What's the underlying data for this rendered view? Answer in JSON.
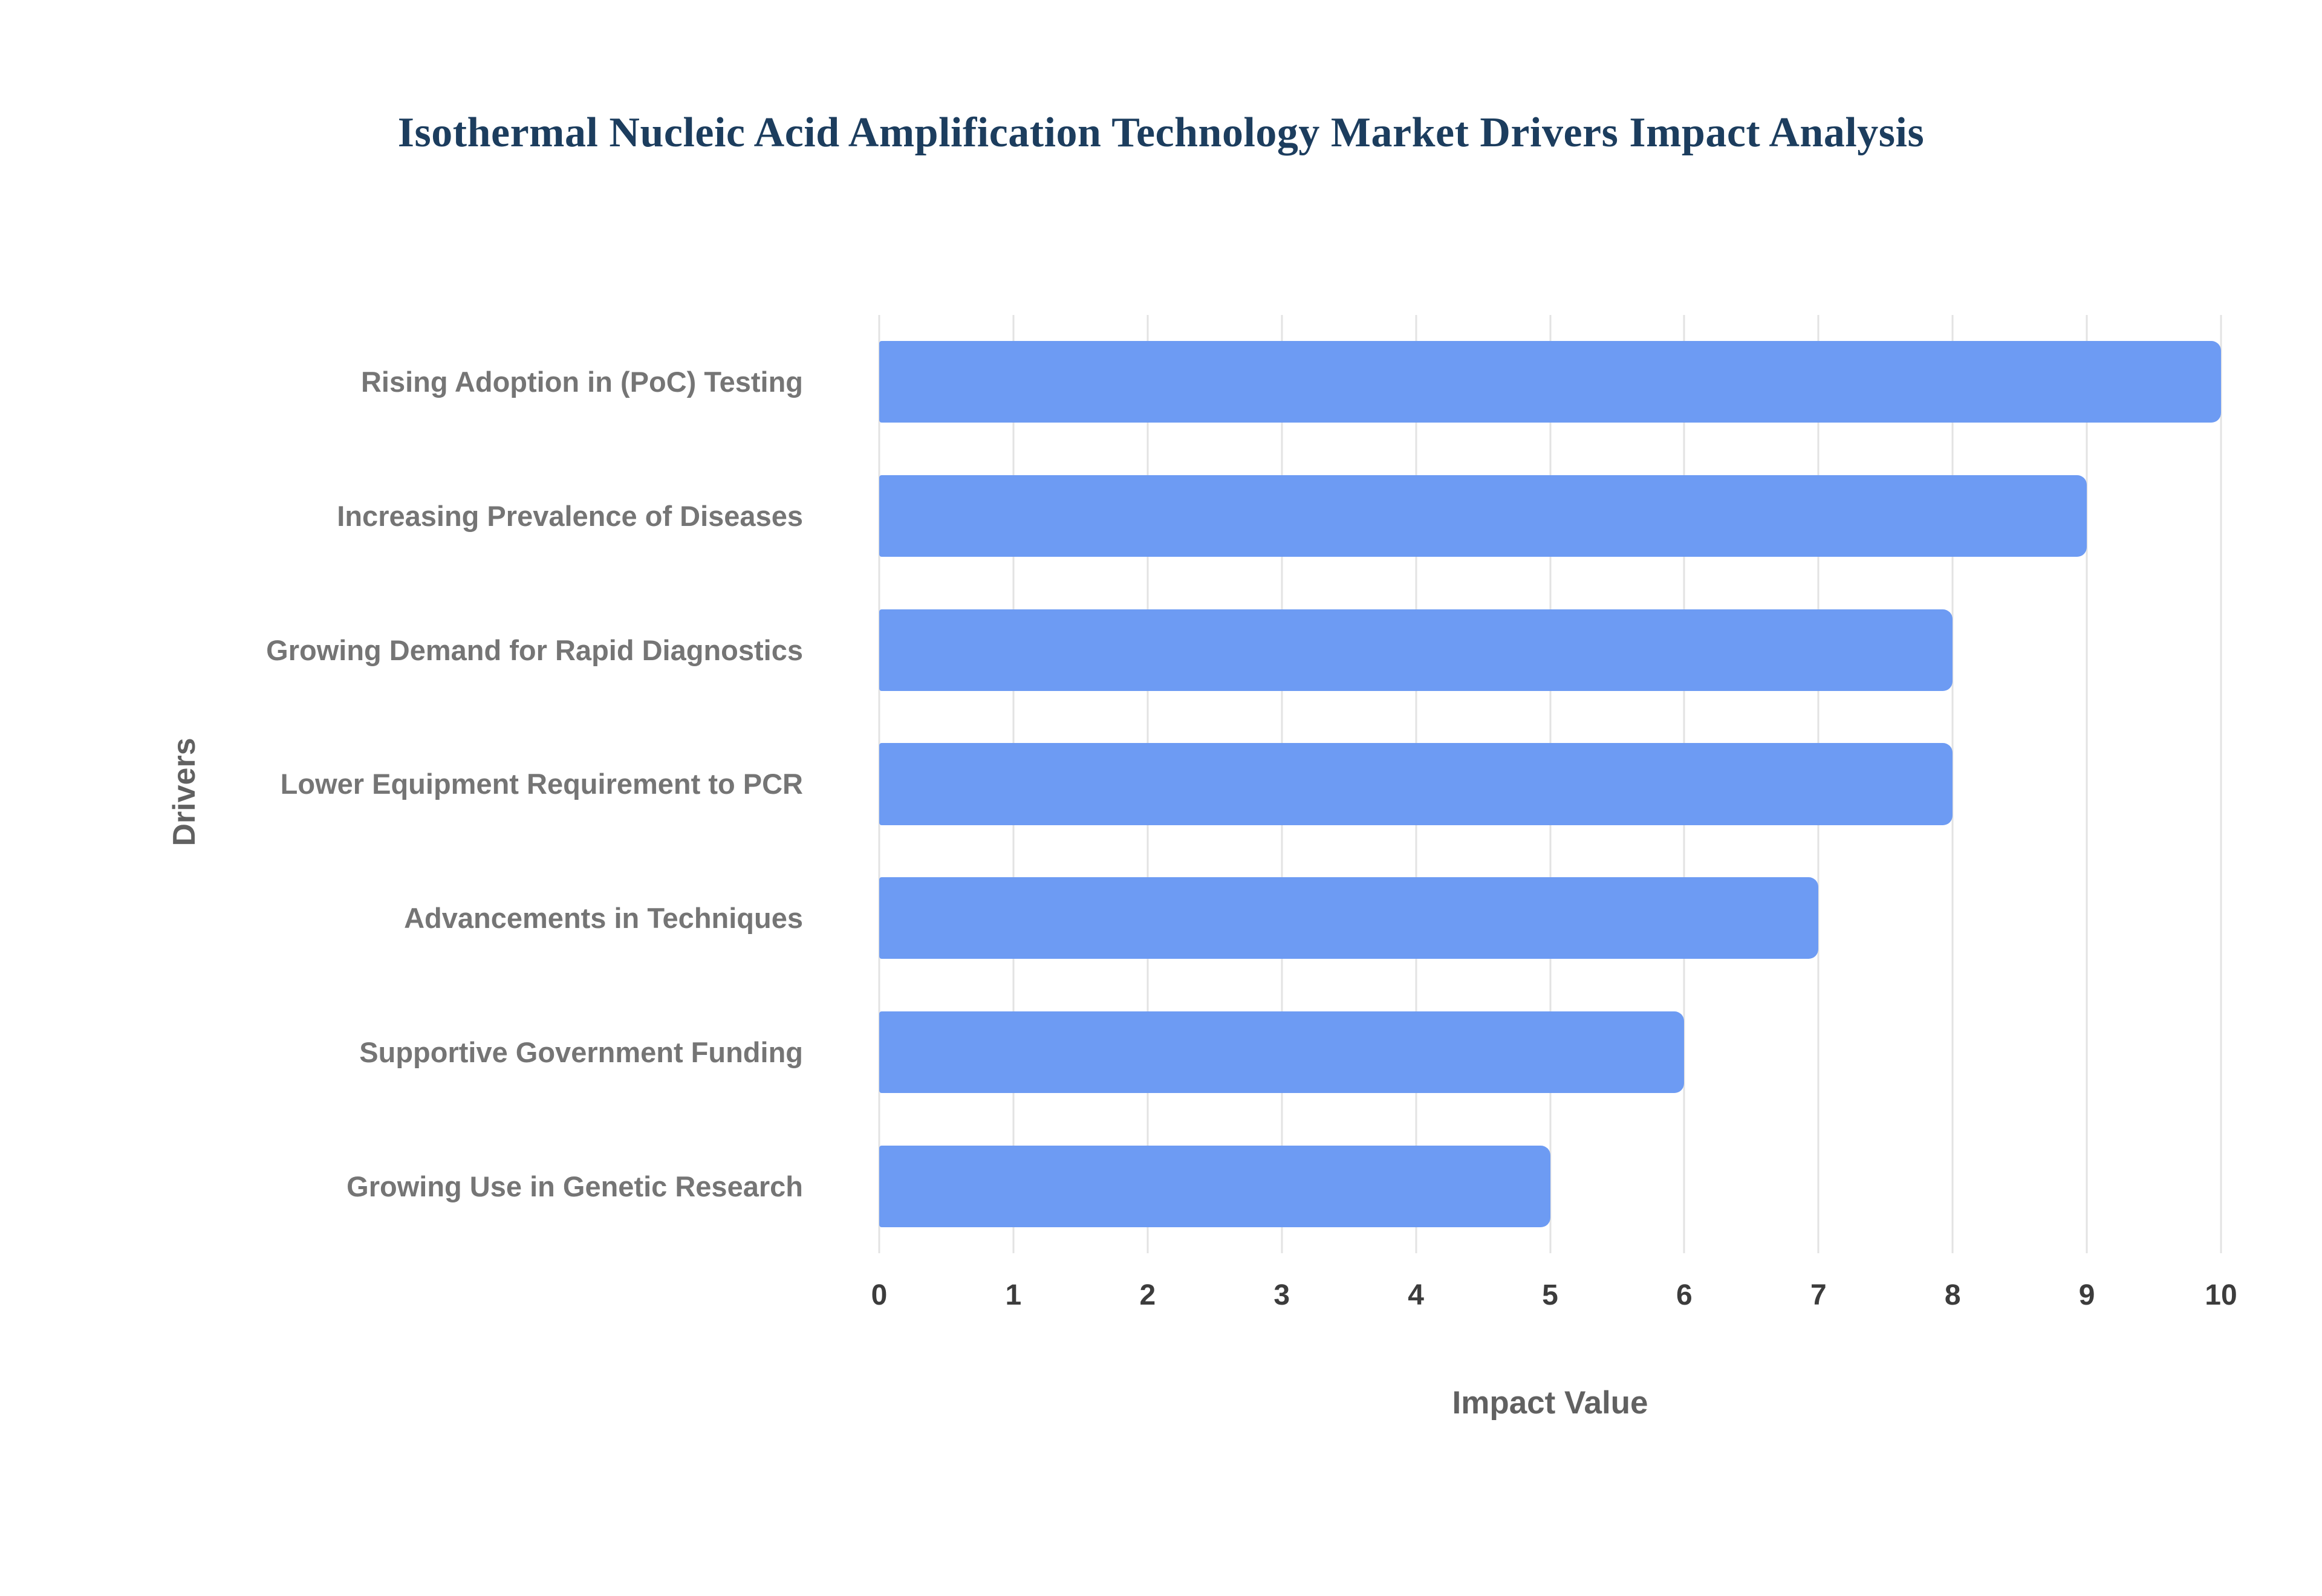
{
  "chart_data": {
    "type": "bar",
    "orientation": "horizontal",
    "title": "Isothermal Nucleic Acid Amplification Technology Market Drivers Impact Analysis",
    "xlabel": "Impact Value",
    "ylabel": "Drivers",
    "categories": [
      "Rising Adoption in (PoC) Testing",
      "Increasing Prevalence of Diseases",
      "Growing Demand for Rapid Diagnostics",
      "Lower Equipment Requirement to PCR",
      "Advancements in Techniques",
      "Supportive Government Funding",
      "Growing Use in Genetic Research"
    ],
    "values": [
      10,
      9,
      8,
      8,
      7,
      6,
      5
    ],
    "xlim": [
      0,
      10
    ],
    "xticks": [
      0,
      1,
      2,
      3,
      4,
      5,
      6,
      7,
      8,
      9,
      10
    ],
    "grid": true,
    "legend": false,
    "colors": {
      "bar": "#6d9bf3",
      "title": "#1c3d5e",
      "category_label": "#757575",
      "tick_label": "#3c3c3c",
      "axis_title": "#616161",
      "grid": "#e3e3e3",
      "background": "#ffffff"
    }
  }
}
